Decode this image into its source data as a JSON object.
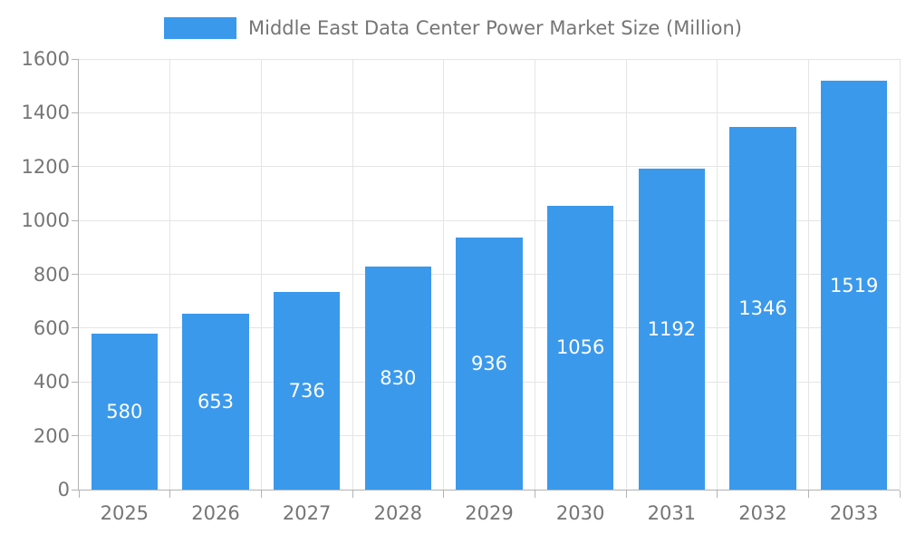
{
  "legend": {
    "label": "Middle East Data Center Power Market Size (Million)"
  },
  "chart_data": {
    "type": "bar",
    "title": "Middle East Data Center Power Market Size (Million)",
    "categories": [
      "2025",
      "2026",
      "2027",
      "2028",
      "2029",
      "2030",
      "2031",
      "2032",
      "2033"
    ],
    "values": [
      580,
      653,
      736,
      830,
      936,
      1056,
      1192,
      1346,
      1519
    ],
    "xlabel": "",
    "ylabel": "",
    "ylim": [
      0,
      1600
    ],
    "yticks": [
      0,
      200,
      400,
      600,
      800,
      1000,
      1200,
      1400,
      1600
    ],
    "grid": true,
    "legend_position": "top",
    "bar_label_position": "inside-center",
    "bar_color": "#3B99EC",
    "bar_label_color": "#FFFFFF",
    "axis_text_color": "#757575",
    "axis_line_color": "#B3B3B3",
    "gridline_color": "#E5E5E5",
    "background_color": "#FFFFFF"
  }
}
